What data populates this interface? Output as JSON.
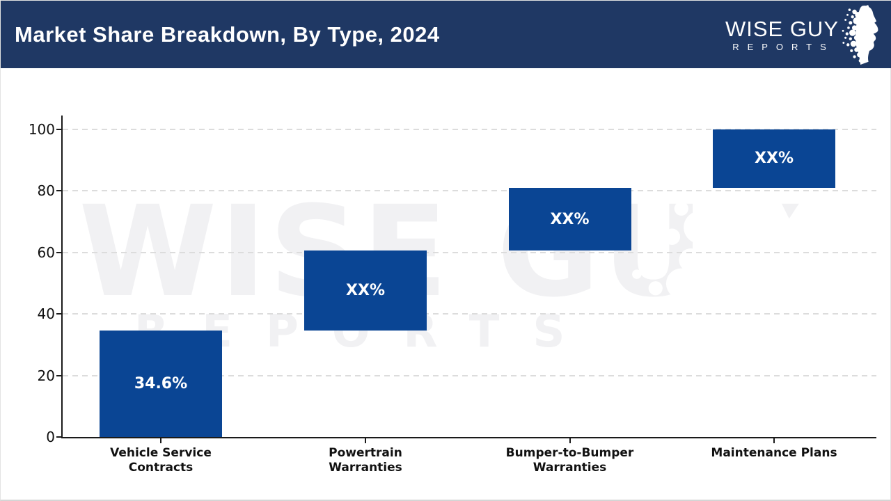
{
  "header": {
    "title": "Market Share Breakdown, By Type, 2024",
    "brand": {
      "line1": "WISE GUY",
      "line2": "REPORTS"
    }
  },
  "watermark": {
    "line1": "WISE GUY",
    "line2": "REPORTS"
  },
  "colors": {
    "header_bg": "#1f3864",
    "bar": "#0a4594",
    "bar_label": "#ffffff",
    "gridline": "#dcdcdc",
    "axis": "#1a1a1a",
    "watermark": "#f1f1f3"
  },
  "chart_data": {
    "type": "bar",
    "subtype": "waterfall",
    "title": "Market Share Breakdown, By Type, 2024",
    "xlabel": "",
    "ylabel": "",
    "ylim": [
      0,
      105
    ],
    "yticks": [
      0,
      20,
      40,
      60,
      80,
      100
    ],
    "grid": "horizontal-dashed",
    "legend": "none",
    "categories": [
      "Vehicle Service\nContracts",
      "Powertrain\nWarranties",
      "Bumper-to-Bumper\nWarranties",
      "Maintenance Plans"
    ],
    "series": [
      {
        "name": "Market Share (%)",
        "segments": [
          {
            "start": 0,
            "end": 34.6,
            "increment": 34.6,
            "label": "34.6%"
          },
          {
            "start": 34.6,
            "end": 60.6,
            "increment": 26.0,
            "label": "XX%"
          },
          {
            "start": 60.6,
            "end": 81.0,
            "increment": 20.4,
            "label": "XX%"
          },
          {
            "start": 81.0,
            "end": 100.0,
            "increment": 19.0,
            "label": "XX%"
          }
        ]
      }
    ]
  }
}
